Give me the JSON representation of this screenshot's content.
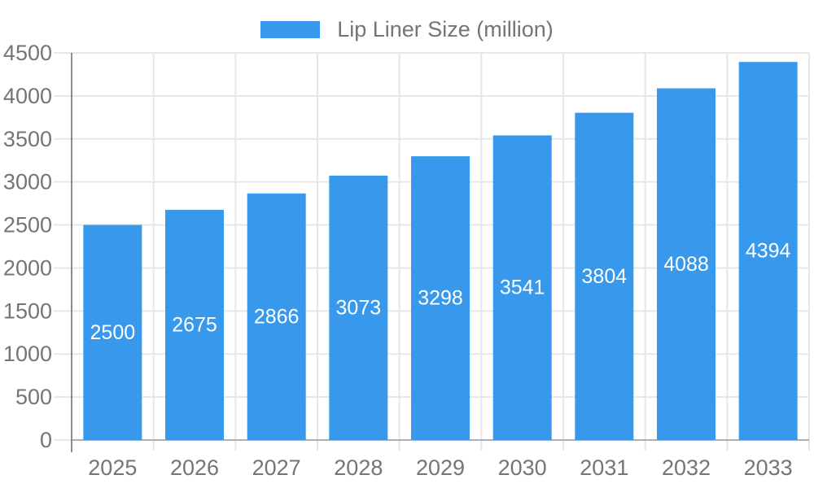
{
  "legend": {
    "label": "Lip Liner Size (million)"
  },
  "colors": {
    "bar": "#3899EC",
    "axis_text": "#757575",
    "legend_text": "#757575",
    "grid_line": "#E7E7E7",
    "y_axis_line": "#8C8C8C",
    "x_axis_line": "#B0B0B0",
    "value_label": "#FFFFFF",
    "background": "#FFFFFF"
  },
  "chart_data": {
    "type": "bar",
    "title": "",
    "xlabel": "",
    "ylabel": "",
    "categories": [
      "2025",
      "2026",
      "2027",
      "2028",
      "2029",
      "2030",
      "2031",
      "2032",
      "2033"
    ],
    "series": [
      {
        "name": "Lip Liner Size (million)",
        "values": [
          2500,
          2675,
          2866,
          3073,
          3298,
          3541,
          3804,
          4088,
          4394
        ]
      }
    ],
    "value_labels_shown": true,
    "value_label_position": "inside-center",
    "ylim": [
      0,
      4500
    ],
    "ytick_step": 500,
    "ytick_labels": [
      "0",
      "500",
      "1000",
      "1500",
      "2000",
      "2500",
      "3000",
      "3500",
      "4000",
      "4500"
    ],
    "grid": true,
    "legend_position": "top-center"
  }
}
